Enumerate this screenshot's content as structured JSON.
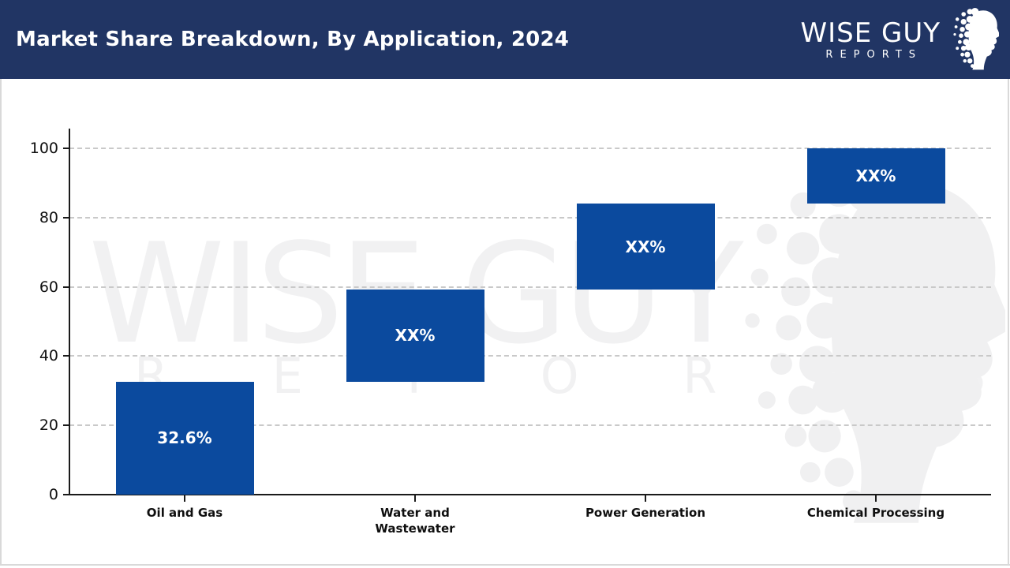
{
  "header": {
    "title": "Market Share Breakdown, By Application, 2024",
    "logo": {
      "line1": "WISE GUY",
      "line2": "REPORTS"
    }
  },
  "watermark": {
    "line1": "WISE GUY",
    "line2": "R E P O R T S"
  },
  "chart_data": {
    "type": "bar",
    "subtype": "waterfall",
    "title": "Market Share Breakdown, By Application, 2024",
    "categories": [
      "Oil and Gas",
      "Water and Wastewater",
      "Power Generation",
      "Chemical Processing"
    ],
    "segments": [
      {
        "category": "Oil and Gas",
        "start": 0,
        "end": 32.6,
        "label": "32.6%"
      },
      {
        "category": "Water and Wastewater",
        "start": 32.6,
        "end": 59.2,
        "label": "XX%"
      },
      {
        "category": "Power Generation",
        "start": 59.2,
        "end": 84.0,
        "label": "XX%"
      },
      {
        "category": "Chemical Processing",
        "start": 84.0,
        "end": 100.0,
        "label": "XX%"
      }
    ],
    "yticks": [
      0,
      20,
      40,
      60,
      80,
      100
    ],
    "ylim": [
      0,
      105.7
    ],
    "xlabel": "",
    "ylabel": "",
    "grid": "horizontal-dashed",
    "legend": "none"
  },
  "colors": {
    "header_bg": "#213564",
    "bar": "#0b4a9e",
    "bar_label": "#ffffff",
    "grid": "#c9c9c9",
    "axis": "#1a1a1a",
    "tick_label": "#111111",
    "watermark": "#f1f1f2",
    "page_border": "#d9d9d9"
  }
}
